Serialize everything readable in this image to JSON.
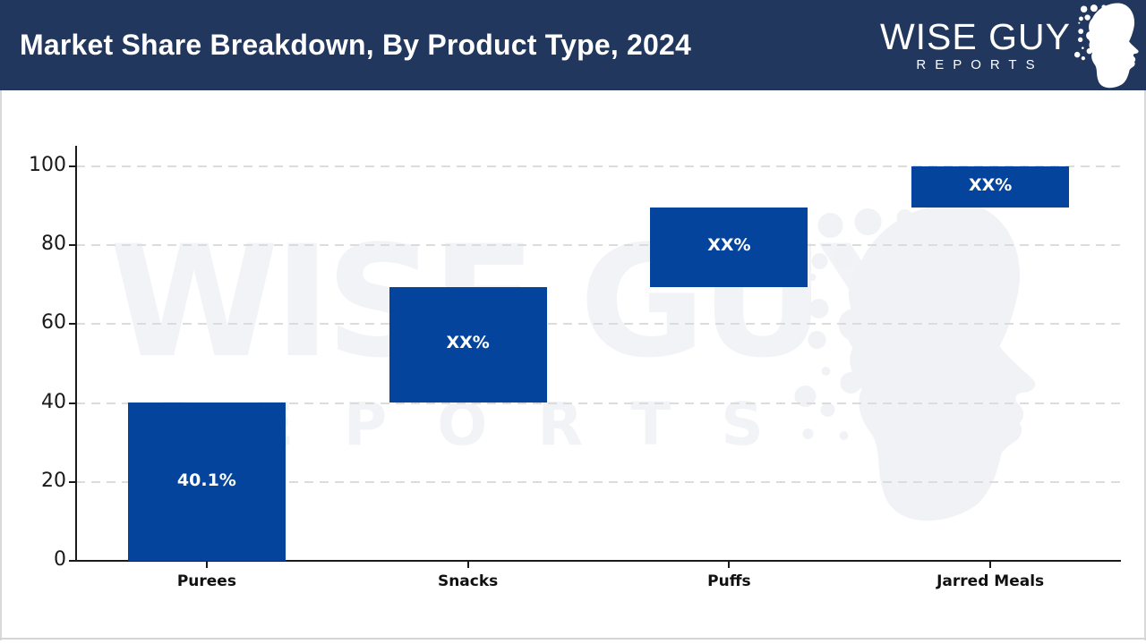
{
  "header": {
    "title": "Market Share Breakdown, By Product Type, 2024",
    "logo": {
      "line1": "WISE GUY",
      "line2": "REPORTS"
    }
  },
  "watermark": {
    "line1": "WISE GUY",
    "line2": "REPORTS"
  },
  "colors": {
    "header_bg": "#21375e",
    "bar": "#05449c",
    "bar_label": "#ffffff",
    "axis": "#1a1a1a",
    "gridline": "#dcdcdc",
    "watermark": "#f2f3f6",
    "frame_border": "#d9d9d9"
  },
  "chart_data": {
    "type": "bar",
    "subtype": "waterfall",
    "title": "Market Share Breakdown, By Product Type, 2024",
    "categories": [
      "Purees",
      "Snacks",
      "Puffs",
      "Jarred Meals"
    ],
    "bars": [
      {
        "category": "Purees",
        "start": 0,
        "end": 40.1,
        "label": "40.1%"
      },
      {
        "category": "Snacks",
        "start": 40.1,
        "end": 69.5,
        "label": "XX%"
      },
      {
        "category": "Puffs",
        "start": 69.5,
        "end": 89.6,
        "label": "XX%"
      },
      {
        "category": "Jarred Meals",
        "start": 89.6,
        "end": 100,
        "label": "XX%"
      }
    ],
    "segment_sizes": [
      40.1,
      29.4,
      20.1,
      10.4
    ],
    "xlabel": "",
    "ylabel": "",
    "ylim": [
      0,
      100
    ],
    "yticks": [
      0,
      20,
      40,
      60,
      80,
      100
    ],
    "grid": "horizontal-dashed",
    "legend": "none",
    "bar_color": "#05449c",
    "bar_label_color": "#ffffff"
  }
}
